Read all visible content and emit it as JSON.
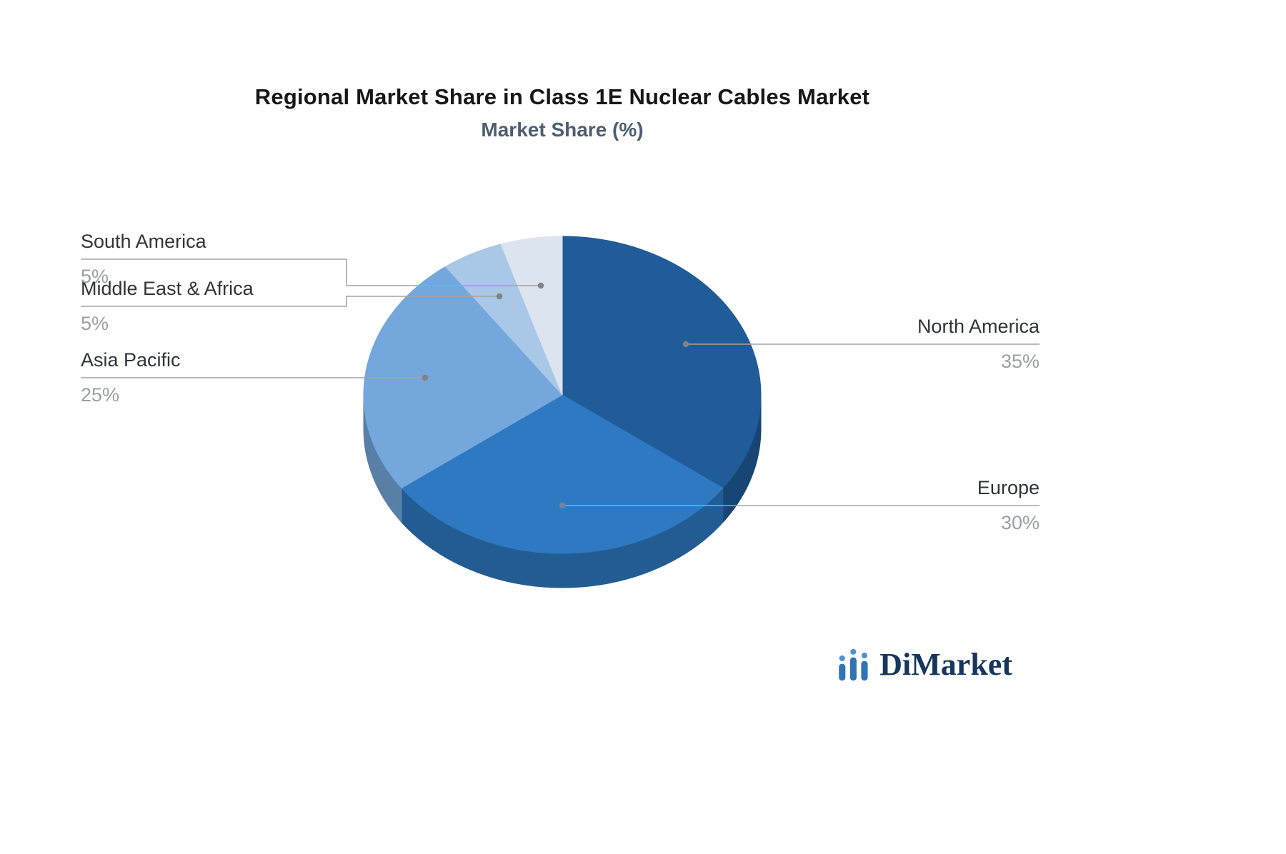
{
  "title": "Regional Market Share in Class 1E Nuclear Cables Market",
  "subtitle": "Market Share (%)",
  "watermark": {
    "brand": "DiMarket"
  },
  "chart_data": {
    "type": "pie",
    "title": "Regional Market Share in Class 1E Nuclear Cables Market",
    "subtitle": "Market Share (%)",
    "unit": "%",
    "legend_position": "callout-labels",
    "style": "3d-pie",
    "slices": [
      {
        "label": "North America",
        "value": 35,
        "display": "35%",
        "color": "#1F5C99"
      },
      {
        "label": "Europe",
        "value": 30,
        "display": "30%",
        "color": "#2E79C2"
      },
      {
        "label": "Asia Pacific",
        "value": 25,
        "display": "25%",
        "color": "#74A7DB"
      },
      {
        "label": "Middle East & Africa",
        "value": 5,
        "display": "5%",
        "color": "#A9C7E7"
      },
      {
        "label": "South America",
        "value": 5,
        "display": "5%",
        "color": "#DCE4EF"
      }
    ]
  }
}
